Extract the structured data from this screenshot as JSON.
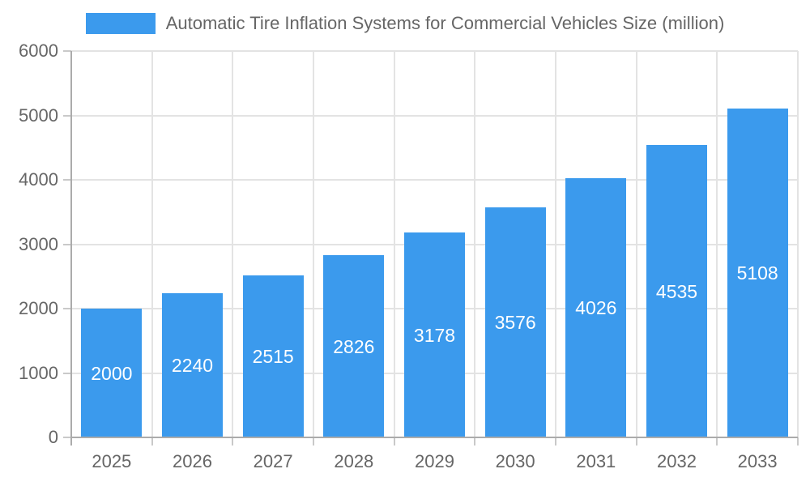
{
  "legend": {
    "label": "Automatic Tire Inflation Systems for Commercial Vehicles Size (million)"
  },
  "colors": {
    "bar": "#3B9AED",
    "bar_label": "#FFFFFF",
    "axis_text": "#666666",
    "grid": "#E3E3E3",
    "tick": "#C9C9C9",
    "axis_border": "#ABABAB",
    "background": "#FFFFFF"
  },
  "chart_data": {
    "type": "bar",
    "title": "Automatic Tire Inflation Systems for Commercial Vehicles Size (million)",
    "legend": [
      "Automatic Tire Inflation Systems for Commercial Vehicles Size (million)"
    ],
    "legend_position": "top",
    "categories": [
      "2025",
      "2026",
      "2027",
      "2028",
      "2029",
      "2030",
      "2031",
      "2032",
      "2033"
    ],
    "values": [
      2000,
      2240,
      2515,
      2826,
      3178,
      3576,
      4026,
      4535,
      5108
    ],
    "xlabel": "",
    "ylabel": "",
    "ylim": [
      0,
      6000
    ],
    "yticks": [
      0,
      1000,
      2000,
      3000,
      4000,
      5000,
      6000
    ],
    "grid": true,
    "bar_label_position": "center"
  }
}
